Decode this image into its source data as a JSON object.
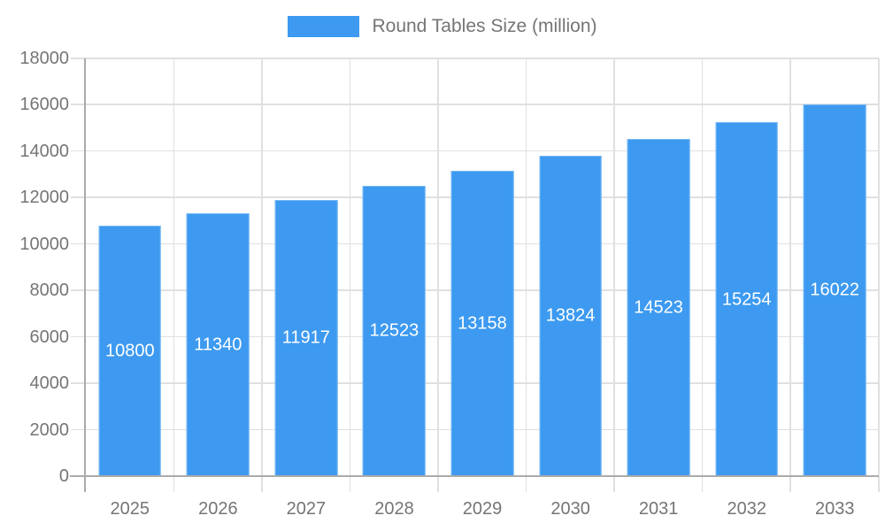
{
  "chart_data": {
    "type": "bar",
    "title": "",
    "legend": "Round Tables Size (million)",
    "legend_position": "top-center",
    "categories": [
      "2025",
      "2026",
      "2027",
      "2028",
      "2029",
      "2030",
      "2031",
      "2032",
      "2033"
    ],
    "values": [
      10800,
      11340,
      11917,
      12523,
      13158,
      13824,
      14523,
      15254,
      16022
    ],
    "xlabel": "",
    "ylabel": "",
    "ylim": [
      0,
      18000
    ],
    "y_ticks": [
      0,
      2000,
      4000,
      6000,
      8000,
      10000,
      12000,
      14000,
      16000,
      18000
    ],
    "grid": true,
    "value_labels": "inside-center",
    "colors": {
      "bar": "#3d9af0",
      "bar_border": "#74b7f4",
      "grid": "#e0e0e0",
      "axis": "#ababab",
      "text": "#757575",
      "value_label": "#ffffff",
      "background": "#ffffff"
    }
  }
}
